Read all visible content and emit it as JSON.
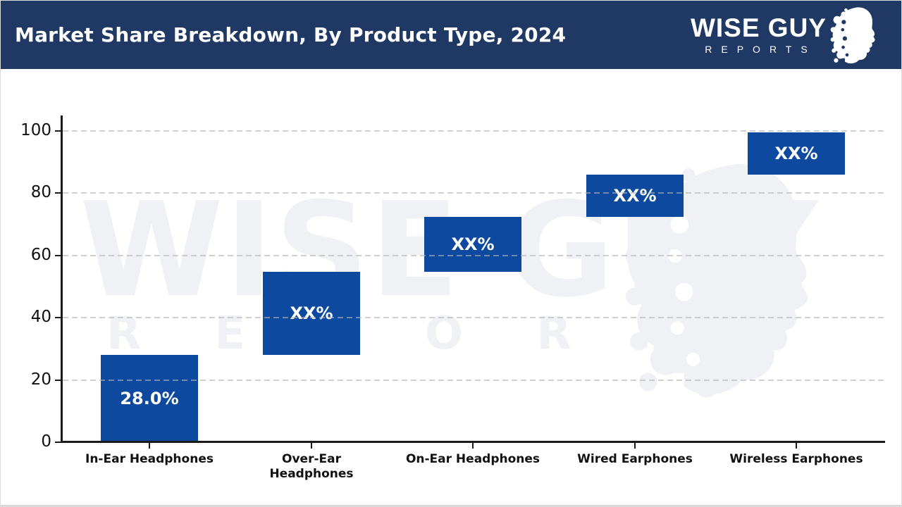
{
  "header": {
    "title": "Market Share Breakdown, By Product Type, 2024",
    "background_color": "#1f3864",
    "logo": {
      "line1": "WISE GUY",
      "line2": "REPORTS"
    }
  },
  "watermark": {
    "line1": "WISE GUY",
    "line2": "REPORTS"
  },
  "chart_data": {
    "type": "bar",
    "subtype": "waterfall",
    "title": "Market Share Breakdown, By Product Type, 2024",
    "xlabel": "",
    "ylabel": "",
    "ylim": [
      0,
      105
    ],
    "grid": true,
    "gridline_color": "#c8c8c8",
    "bar_color": "#0d4a9f",
    "value_label_color": "#ffffff",
    "yticks": [
      0,
      20,
      40,
      60,
      80,
      100
    ],
    "categories": [
      "In-Ear Headphones",
      "Over-Ear Headphones",
      "On-Ear Headphones",
      "Wired Earphones",
      "Wireless Earphones"
    ],
    "tick_labels": [
      "In-Ear Headphones",
      "Over-Ear\nHeadphones",
      "On-Ear Headphones",
      "Wired Earphones",
      "Wireless Earphones"
    ],
    "segments": [
      {
        "category": "In-Ear Headphones",
        "start": 0,
        "end": 28.0,
        "label": "28.0%"
      },
      {
        "category": "Over-Ear Headphones",
        "start": 28.0,
        "end": 54.7,
        "label": "XX%"
      },
      {
        "category": "On-Ear Headphones",
        "start": 54.7,
        "end": 72.4,
        "label": "XX%"
      },
      {
        "category": "Wired Earphones",
        "start": 72.4,
        "end": 86.0,
        "label": "XX%"
      },
      {
        "category": "Wireless Earphones",
        "start": 86.0,
        "end": 99.5,
        "label": "XX%"
      }
    ]
  }
}
